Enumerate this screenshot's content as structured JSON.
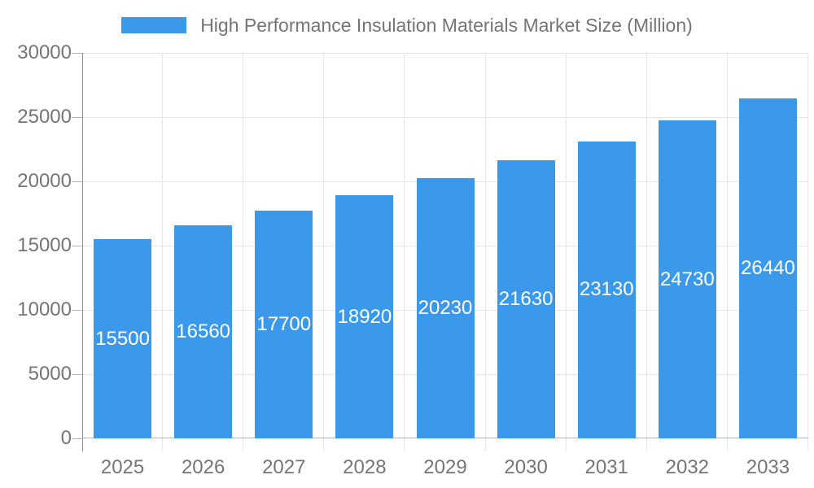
{
  "legend": {
    "label": "High Performance Insulation Materials Market Size (Million)"
  },
  "colors": {
    "bar": "#3B99EC",
    "text": "#757575",
    "bar_label": "#FFFFFF",
    "gridline": "#E6E6E6",
    "axis": "#919191",
    "baseline": "#B3B3B3",
    "y_tick": "#B3B3B3",
    "x_tick": "#E6E6E6",
    "background": "#FFFFFF"
  },
  "chart_data": {
    "type": "bar",
    "title": "High Performance Insulation Materials Market Size (Million)",
    "categories": [
      "2025",
      "2026",
      "2027",
      "2028",
      "2029",
      "2030",
      "2031",
      "2032",
      "2033"
    ],
    "values": [
      15500,
      16560,
      17700,
      18920,
      20230,
      21630,
      23130,
      24730,
      26440
    ],
    "series": [
      {
        "name": "High Performance Insulation Materials Market Size (Million)",
        "values": [
          15500,
          16560,
          17700,
          18920,
          20230,
          21630,
          23130,
          24730,
          26440
        ]
      }
    ],
    "xlabel": "",
    "ylabel": "",
    "ylim": [
      0,
      30000
    ],
    "yticks": [
      0,
      5000,
      10000,
      15000,
      20000,
      25000,
      30000
    ],
    "grid": true,
    "legend_position": "top",
    "value_labels": "inside-center"
  }
}
